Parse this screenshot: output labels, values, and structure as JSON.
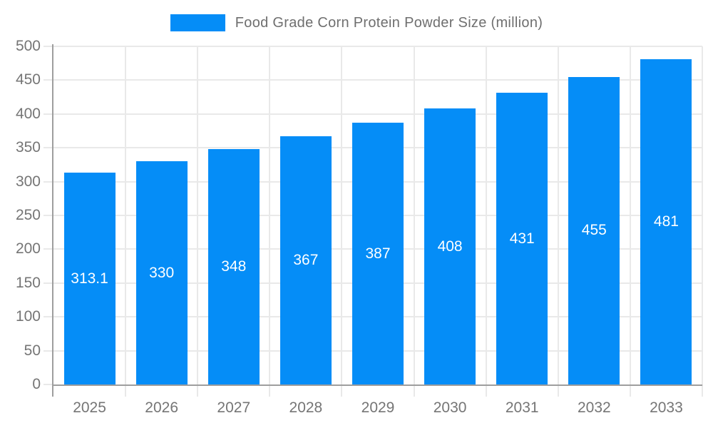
{
  "legend": {
    "label": "Food Grade Corn Protein Powder Size (million)"
  },
  "chart_data": {
    "type": "bar",
    "title": "Food Grade Corn Protein Powder Size (million)",
    "categories": [
      "2025",
      "2026",
      "2027",
      "2028",
      "2029",
      "2030",
      "2031",
      "2032",
      "2033"
    ],
    "values": [
      313.1,
      330,
      348,
      367,
      387,
      408,
      431,
      455,
      481
    ],
    "xlabel": "",
    "ylabel": "",
    "ylim": [
      0,
      500
    ],
    "yticks": [
      0,
      50,
      100,
      150,
      200,
      250,
      300,
      350,
      400,
      450,
      500
    ],
    "grid": true,
    "legend_position": "top-center",
    "bar_labels_inside": true,
    "colors": {
      "bar": "#058DF7",
      "grid": "#e9e9e9",
      "axis": "#9e9e9e",
      "tick_text": "#757575",
      "value_text": "#ffffff",
      "background": "#ffffff"
    }
  }
}
